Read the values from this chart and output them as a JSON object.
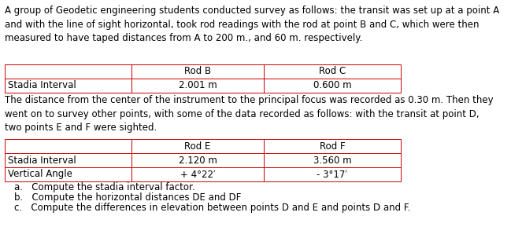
{
  "paragraph1": "A group of Geodetic engineering students conducted survey as follows: the transit was set up at a point A\nand with the line of sight horizontal, took rod readings with the rod at point B and C, which were then\nmeasured to have taped distances from A to 200 m., and 60 m. respectively.",
  "paragraph2": "The distance from the center of the instrument to the principal focus was recorded as 0.30 m. Then they\nwent on to survey other points, with some of the data recorded as follows: with the transit at point D,\ntwo points E and F were sighted.",
  "table1_headers": [
    "",
    "Rod B",
    "Rod C"
  ],
  "table1_rows": [
    [
      "Stadia Interval",
      "2.001 m",
      "0.600 m"
    ]
  ],
  "table2_headers": [
    "",
    "Rod E",
    "Rod F"
  ],
  "table2_row1": [
    "Stadia Interval",
    "2.120 m",
    "3.560 m"
  ],
  "table2_row2": [
    "Vertical Angle",
    "+ 4°22′",
    "- 3°17′"
  ],
  "bullets": [
    "a.   Compute the stadia interval factor.",
    "b.   Compute the horizontal distances DE and DF",
    "c.   Compute the differences in elevation between points D and E and points D and F."
  ],
  "bg_color": "#ffffff",
  "text_color": "#000000",
  "border_color": "#cc0000",
  "font_size": 8.5
}
